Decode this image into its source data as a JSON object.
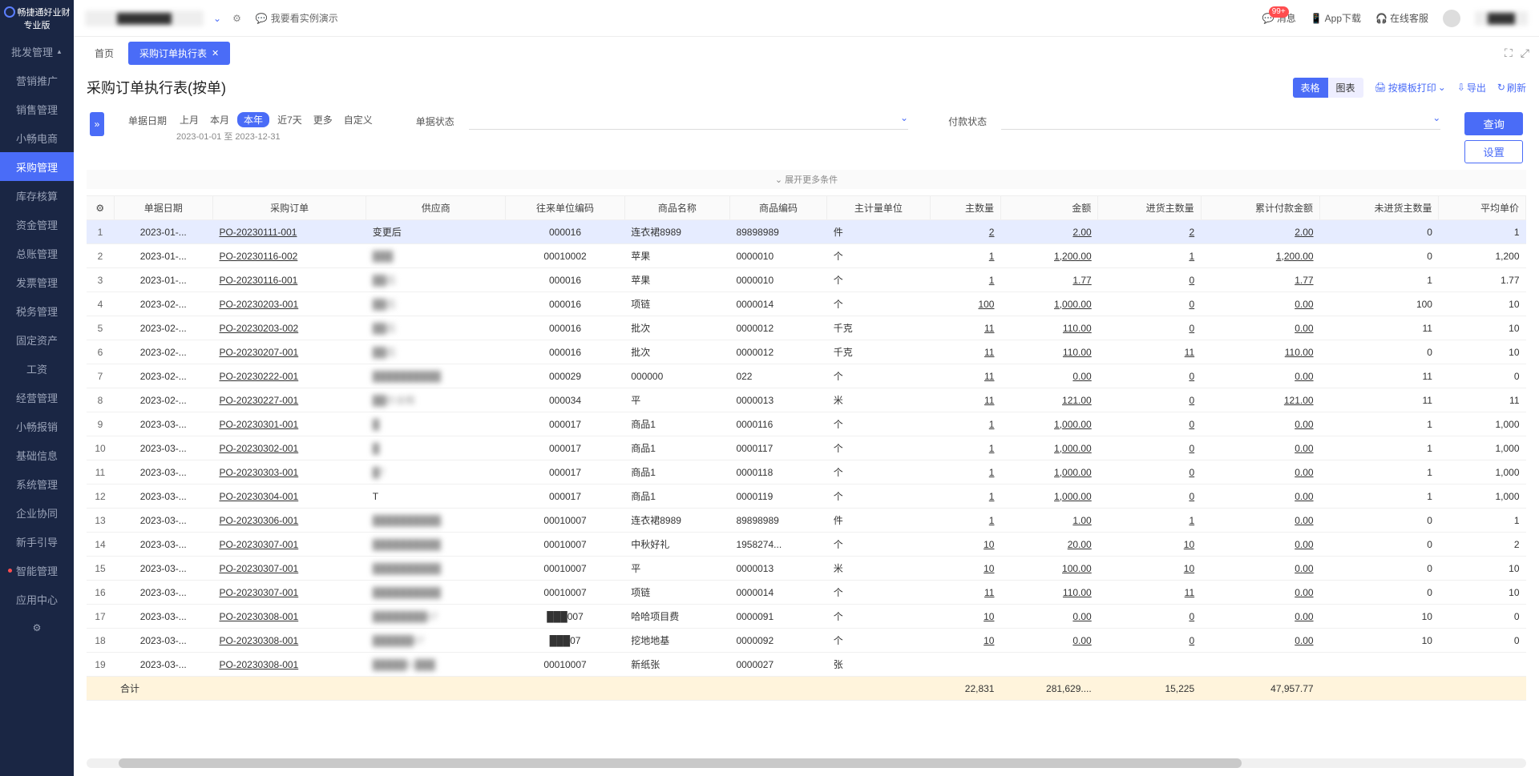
{
  "logo": {
    "brand": "畅捷通好业财",
    "edition": "专业版"
  },
  "sidebar": [
    {
      "label": "批发管理",
      "expanded": true
    },
    {
      "label": "营销推广"
    },
    {
      "label": "销售管理"
    },
    {
      "label": "小畅电商"
    },
    {
      "label": "采购管理",
      "active": true
    },
    {
      "label": "库存核算"
    },
    {
      "label": "资金管理"
    },
    {
      "label": "总账管理"
    },
    {
      "label": "发票管理"
    },
    {
      "label": "税务管理"
    },
    {
      "label": "固定资产"
    },
    {
      "label": "工资"
    },
    {
      "label": "经营管理"
    },
    {
      "label": "小畅报销"
    },
    {
      "label": "基础信息"
    },
    {
      "label": "系统管理"
    },
    {
      "label": "企业协同"
    },
    {
      "label": "新手引导"
    },
    {
      "label": "智能管理",
      "dot": true
    },
    {
      "label": "应用中心"
    }
  ],
  "topbar": {
    "org": "████████",
    "demo": "我要看实例演示",
    "msg": "消息",
    "msg_badge": "99+",
    "app": "App下载",
    "service": "在线客服",
    "user": "████"
  },
  "tabs": {
    "home": "首页",
    "active": "采购订单执行表"
  },
  "page": {
    "title": "采购订单执行表(按单)",
    "view_table": "表格",
    "view_chart": "图表",
    "print": "按模板打印",
    "export": "导出",
    "refresh": "刷新"
  },
  "filters": {
    "date_label": "单据日期",
    "opts": [
      "上月",
      "本月",
      "本年",
      "近7天",
      "更多",
      "自定义"
    ],
    "opt_active": "本年",
    "range": "2023-01-01 至 2023-12-31",
    "status_label": "单据状态",
    "pay_label": "付款状态",
    "query": "查询",
    "settings": "设置",
    "expand": "展开更多条件"
  },
  "columns": [
    {
      "key": "idx",
      "label": "",
      "cls": "gear-th"
    },
    {
      "key": "date",
      "label": "单据日期",
      "cls": "center"
    },
    {
      "key": "po",
      "label": "采购订单",
      "cls": "center"
    },
    {
      "key": "supplier",
      "label": "供应商",
      "cls": "center"
    },
    {
      "key": "partner_code",
      "label": "往来单位编码",
      "cls": "center"
    },
    {
      "key": "goods",
      "label": "商品名称",
      "cls": "center"
    },
    {
      "key": "goods_code",
      "label": "商品编码",
      "cls": "center"
    },
    {
      "key": "unit",
      "label": "主计量单位",
      "cls": "center"
    },
    {
      "key": "qty",
      "label": "主数量",
      "cls": "right"
    },
    {
      "key": "amount",
      "label": "金额",
      "cls": "right"
    },
    {
      "key": "in_qty",
      "label": "进货主数量",
      "cls": "right"
    },
    {
      "key": "paid",
      "label": "累计付款金额",
      "cls": "right"
    },
    {
      "key": "pending",
      "label": "未进货主数量",
      "cls": "right"
    },
    {
      "key": "avg",
      "label": "平均单价",
      "cls": "right"
    }
  ],
  "rows": [
    {
      "idx": 1,
      "date": "2023-01-...",
      "po": "PO-20230111-001",
      "supplier": "变更后",
      "pc": "000016",
      "goods": "连衣裙8989",
      "gc": "89898989",
      "unit": "件",
      "qty": "2",
      "amount": "2.00",
      "in": "2",
      "paid": "2.00",
      "pend": "0",
      "avg": "1",
      "sel": true
    },
    {
      "idx": 2,
      "date": "2023-01-...",
      "po": "PO-20230116-002",
      "supplier": "███",
      "pc": "00010002",
      "goods": "苹果",
      "gc": "0000010",
      "unit": "个",
      "qty": "1",
      "amount": "1,200.00",
      "in": "1",
      "paid": "1,200.00",
      "pend": "0",
      "avg": "1,200",
      "blur": true
    },
    {
      "idx": 3,
      "date": "2023-01-...",
      "po": "PO-20230116-001",
      "supplier": "██后",
      "pc": "000016",
      "goods": "苹果",
      "gc": "0000010",
      "unit": "个",
      "qty": "1",
      "amount": "1.77",
      "in": "0",
      "paid": "1.77",
      "pend": "1",
      "avg": "1.77",
      "blur": true
    },
    {
      "idx": 4,
      "date": "2023-02-...",
      "po": "PO-20230203-001",
      "supplier": "██后",
      "pc": "000016",
      "goods": "项链",
      "gc": "0000014",
      "unit": "个",
      "qty": "100",
      "amount": "1,000.00",
      "in": "0",
      "paid": "0.00",
      "pend": "100",
      "avg": "10",
      "blur": true
    },
    {
      "idx": 5,
      "date": "2023-02-...",
      "po": "PO-20230203-002",
      "supplier": "██后",
      "pc": "000016",
      "goods": "批次",
      "gc": "0000012",
      "unit": "千克",
      "qty": "11",
      "amount": "110.00",
      "in": "0",
      "paid": "0.00",
      "pend": "11",
      "avg": "10",
      "blur": true
    },
    {
      "idx": 6,
      "date": "2023-02-...",
      "po": "PO-20230207-001",
      "supplier": "██后",
      "pc": "000016",
      "goods": "批次",
      "gc": "0000012",
      "unit": "千克",
      "qty": "11",
      "amount": "110.00",
      "in": "11",
      "paid": "110.00",
      "pend": "0",
      "avg": "10",
      "blur": true
    },
    {
      "idx": 7,
      "date": "2023-02-...",
      "po": "PO-20230222-001",
      "supplier": "██████████",
      "pc": "000029",
      "goods": "000000",
      "gc": "022",
      "unit": "个",
      "qty": "11",
      "amount": "0.00",
      "in": "0",
      "paid": "0.00",
      "pend": "11",
      "avg": "0",
      "blur": true
    },
    {
      "idx": 8,
      "date": "2023-02-...",
      "po": "PO-20230227-001",
      "supplier": "██价含税",
      "pc": "000034",
      "goods": "平",
      "gc": "0000013",
      "unit": "米",
      "qty": "11",
      "amount": "121.00",
      "in": "0",
      "paid": "121.00",
      "pend": "11",
      "avg": "11",
      "blur": true
    },
    {
      "idx": 9,
      "date": "2023-03-...",
      "po": "PO-20230301-001",
      "supplier": "█",
      "pc": "000017",
      "goods": "商品1",
      "gc": "0000116",
      "unit": "个",
      "qty": "1",
      "amount": "1,000.00",
      "in": "0",
      "paid": "0.00",
      "pend": "1",
      "avg": "1,000",
      "blur": true
    },
    {
      "idx": 10,
      "date": "2023-03-...",
      "po": "PO-20230302-001",
      "supplier": "█",
      "pc": "000017",
      "goods": "商品1",
      "gc": "0000117",
      "unit": "个",
      "qty": "1",
      "amount": "1,000.00",
      "in": "0",
      "paid": "0.00",
      "pend": "1",
      "avg": "1,000",
      "blur": true
    },
    {
      "idx": 11,
      "date": "2023-03-...",
      "po": "PO-20230303-001",
      "supplier": "█T",
      "pc": "000017",
      "goods": "商品1",
      "gc": "0000118",
      "unit": "个",
      "qty": "1",
      "amount": "1,000.00",
      "in": "0",
      "paid": "0.00",
      "pend": "1",
      "avg": "1,000",
      "blur": true
    },
    {
      "idx": 12,
      "date": "2023-03-...",
      "po": "PO-20230304-001",
      "supplier": "T",
      "pc": "000017",
      "goods": "商品1",
      "gc": "0000119",
      "unit": "个",
      "qty": "1",
      "amount": "1,000.00",
      "in": "0",
      "paid": "0.00",
      "pend": "1",
      "avg": "1,000"
    },
    {
      "idx": 13,
      "date": "2023-03-...",
      "po": "PO-20230306-001",
      "supplier": "██████████.",
      "pc": "00010007",
      "goods": "连衣裙8989",
      "gc": "89898989",
      "unit": "件",
      "qty": "1",
      "amount": "1.00",
      "in": "1",
      "paid": "0.00",
      "pend": "0",
      "avg": "1",
      "blur": true
    },
    {
      "idx": 14,
      "date": "2023-03-...",
      "po": "PO-20230307-001",
      "supplier": "██████████",
      "pc": "00010007",
      "goods": "中秋好礼",
      "gc": "1958274...",
      "unit": "个",
      "qty": "10",
      "amount": "20.00",
      "in": "10",
      "paid": "0.00",
      "pend": "0",
      "avg": "2",
      "blur": true
    },
    {
      "idx": 15,
      "date": "2023-03-...",
      "po": "PO-20230307-001",
      "supplier": "██████████",
      "pc": "00010007",
      "goods": "平",
      "gc": "0000013",
      "unit": "米",
      "qty": "10",
      "amount": "100.00",
      "in": "10",
      "paid": "0.00",
      "pend": "0",
      "avg": "10",
      "blur": true
    },
    {
      "idx": 16,
      "date": "2023-03-...",
      "po": "PO-20230307-001",
      "supplier": "██████████",
      "pc": "00010007",
      "goods": "项链",
      "gc": "0000014",
      "unit": "个",
      "qty": "11",
      "amount": "110.00",
      "in": "11",
      "paid": "0.00",
      "pend": "0",
      "avg": "10",
      "blur": true
    },
    {
      "idx": 17,
      "date": "2023-03-...",
      "po": "PO-20230308-001",
      "supplier": "████████07",
      "pc": "███007",
      "goods": "哈哈项目费",
      "gc": "0000091",
      "unit": "个",
      "qty": "10",
      "amount": "0.00",
      "in": "0",
      "paid": "0.00",
      "pend": "10",
      "avg": "0",
      "blur": true
    },
    {
      "idx": 18,
      "date": "2023-03-...",
      "po": "PO-20230308-001",
      "supplier": "██████07",
      "pc": "███07",
      "goods": "挖地地基",
      "gc": "0000092",
      "unit": "个",
      "qty": "10",
      "amount": "0.00",
      "in": "0",
      "paid": "0.00",
      "pend": "10",
      "avg": "0",
      "blur": true
    },
    {
      "idx": 19,
      "date": "2023-03-...",
      "po": "PO-20230308-001",
      "supplier": "█████0.███",
      "pc": "00010007",
      "goods": "新纸张",
      "gc": "0000027",
      "unit": "张",
      "qty": "",
      "amount": "",
      "in": "",
      "paid": "",
      "pend": "",
      "avg": "",
      "blur": true
    }
  ],
  "total": {
    "label": "合计",
    "qty": "22,831",
    "amount": "281,629....",
    "in": "15,225",
    "paid": "47,957.77"
  }
}
